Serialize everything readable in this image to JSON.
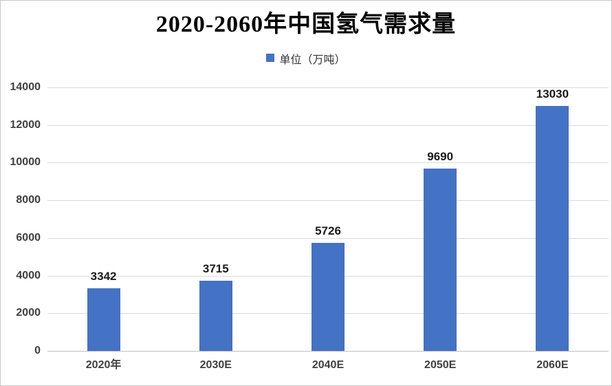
{
  "chart_data": {
    "type": "bar",
    "title": "2020-2060年中国氢气需求量",
    "legend": {
      "label": "单位（万吨）",
      "position": "top"
    },
    "categories": [
      "2020年",
      "2030E",
      "2040E",
      "2050E",
      "2060E"
    ],
    "values": [
      3342,
      3715,
      5726,
      9690,
      13030
    ],
    "xlabel": "",
    "ylabel": "",
    "ylim": [
      0,
      14000
    ],
    "ytick_interval": 2000,
    "yticks": [
      0,
      2000,
      4000,
      6000,
      8000,
      10000,
      12000,
      14000
    ],
    "grid": true,
    "data_labels_shown": true,
    "colors": {
      "bar": "#4472C4",
      "gridline": "#d9d9d9",
      "axis_line": "#bfbfbf",
      "tick_label": "#404040",
      "data_label": "#1a1a1a",
      "frame_border": "#c6c6c6",
      "background": "#ffffff"
    }
  }
}
